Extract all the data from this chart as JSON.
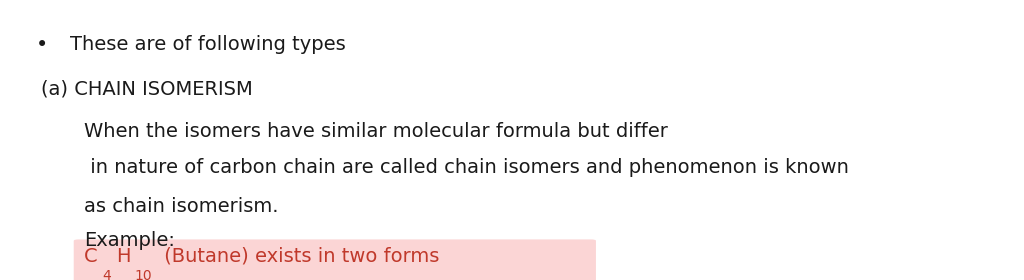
{
  "background_color": "#ffffff",
  "bullet_text": "These are of following types",
  "heading_label": "(a) CHAIN ISOMERISM",
  "line1": "When the isomers have similar molecular formula but differ",
  "line2": " in nature of carbon chain are called chain isomers and phenomenon is known",
  "line3": "as chain isomerism.",
  "line4": "Example:",
  "example_c": "C",
  "example_sub4": "4",
  "example_h": "H",
  "example_sub10": "10",
  "example_rest": " (Butane) exists in two forms",
  "highlight_color": "#f8b4b4",
  "red_text_color": "#c0392b",
  "black_color": "#1a1a1a",
  "font_size": 14,
  "font_size_sub": 10
}
